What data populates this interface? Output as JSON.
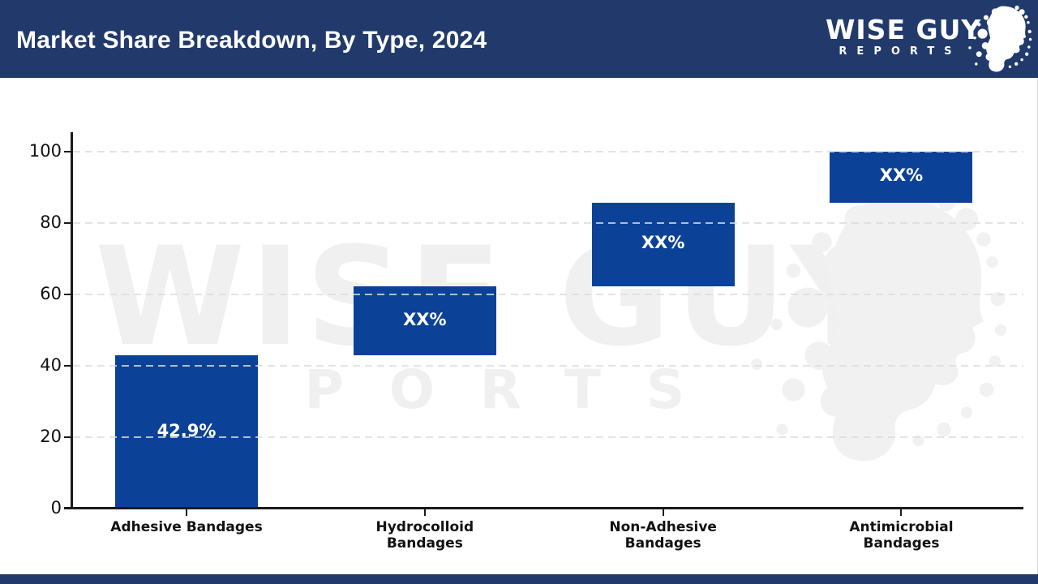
{
  "header": {
    "title": "Market Share Breakdown, By Type, 2024",
    "logo": {
      "line1": "WISE GUY",
      "line2": "REPORTS"
    }
  },
  "watermark": {
    "line1": "WISE GUY",
    "line2": "PORTS"
  },
  "colors": {
    "header_bg": "#213a6b",
    "bar_blue": "#0b4298",
    "watermark_gray": "#f0f0f1",
    "axis_black": "#1a1a1a",
    "gridline_gray": "#dcdcdc",
    "label_white": "#ffffff"
  },
  "chart_data": {
    "type": "bar",
    "subtype": "waterfall",
    "title": "Market Share Breakdown, By Type, 2024",
    "xlabel": "",
    "ylabel": "",
    "ylim": [
      0,
      105
    ],
    "yticks": [
      0,
      20,
      40,
      60,
      80,
      100
    ],
    "grid": "horizontal-dashed",
    "legend": "none",
    "categories": [
      "Adhesive Bandages",
      "Hydrocolloid\nBandages",
      "Non-Adhesive\nBandages",
      "Antimicrobial\nBandages"
    ],
    "bars": [
      {
        "category": "Adhesive Bandages",
        "start": 0,
        "end": 42.9,
        "value": 42.9,
        "label": "42.9%"
      },
      {
        "category": "Hydrocolloid Bandages",
        "start": 42.9,
        "end": 62.3,
        "value": 19.4,
        "label": "XX%"
      },
      {
        "category": "Non-Adhesive Bandages",
        "start": 62.3,
        "end": 85.7,
        "value": 23.4,
        "label": "XX%"
      },
      {
        "category": "Antimicrobial Bandages",
        "start": 85.7,
        "end": 100,
        "value": 14.3,
        "label": "XX%"
      }
    ]
  }
}
